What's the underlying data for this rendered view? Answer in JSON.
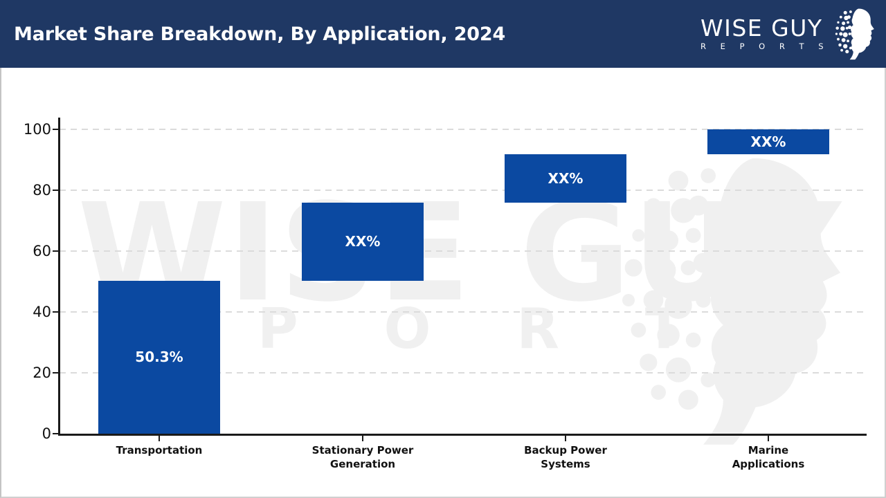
{
  "header": {
    "title": "Market Share Breakdown, By Application, 2024",
    "logo": {
      "wordmark": "WISE GUY",
      "subtext": "R E P O R T S"
    }
  },
  "watermark": {
    "line1": "WISE GUY",
    "line2": "P O R T S"
  },
  "chart_data": {
    "type": "bar",
    "subtype": "waterfall-percentage-breakdown",
    "title": "Market Share Breakdown, By Application, 2024",
    "categories": [
      "Transportation",
      "Stationary Power Generation",
      "Backup Power Systems",
      "Marine Applications"
    ],
    "x_tick_lines": [
      [
        "Transportation"
      ],
      [
        "Stationary Power",
        "Generation"
      ],
      [
        "Backup Power",
        "Systems"
      ],
      [
        "Marine",
        "Applications"
      ]
    ],
    "segments": [
      {
        "category": "Transportation",
        "start": 0,
        "end": 50.3,
        "value": 50.3,
        "label": "50.3%"
      },
      {
        "category": "Stationary Power Generation",
        "start": 50.3,
        "end": 75.9,
        "value": 25.6,
        "label": "XX%"
      },
      {
        "category": "Backup Power Systems",
        "start": 75.9,
        "end": 91.8,
        "value": 15.9,
        "label": "XX%"
      },
      {
        "category": "Marine Applications",
        "start": 91.8,
        "end": 100,
        "value": 8.2,
        "label": "XX%"
      }
    ],
    "ylim": [
      0,
      100
    ],
    "yticks": [
      0,
      20,
      40,
      60,
      80,
      100
    ],
    "grid": "horizontal-dashed",
    "legend": "none",
    "colors": {
      "bar": "#0b49a1",
      "bar_label": "#ffffff",
      "axis": "#1a1a1a",
      "gridline": "#dbdbdb",
      "header_bg": "#1f3864",
      "header_text": "#ffffff",
      "watermark": "#f0f0f0"
    }
  }
}
